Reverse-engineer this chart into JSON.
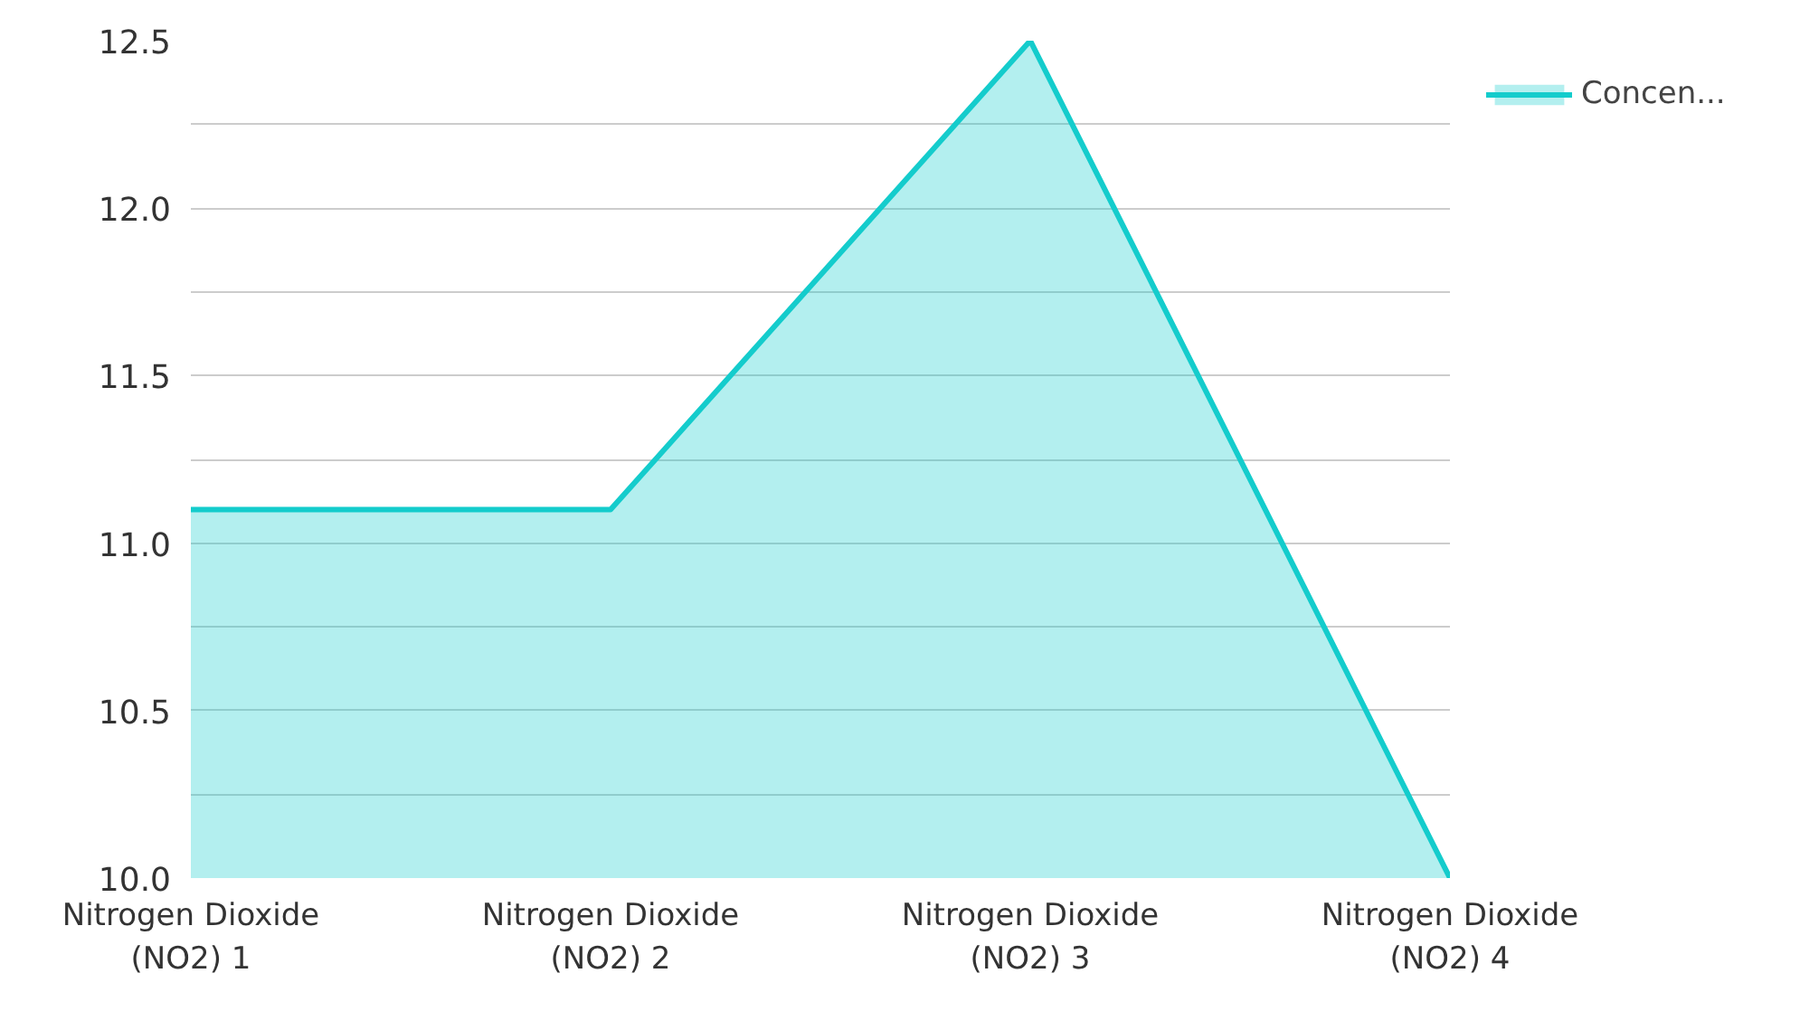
{
  "chart_data": {
    "type": "area",
    "categories": [
      "Nitrogen Dioxide (NO2) 1",
      "Nitrogen Dioxide (NO2) 2",
      "Nitrogen Dioxide (NO2) 3",
      "Nitrogen Dioxide (NO2) 4"
    ],
    "series": [
      {
        "name": "Concen...",
        "color": "#14cccc",
        "values": [
          11.1,
          11.1,
          12.5,
          10.0
        ]
      }
    ],
    "ylim": [
      10.0,
      12.5
    ],
    "yticks": [
      {
        "value": 10.0,
        "label": "10.0"
      },
      {
        "value": 10.25,
        "label": null
      },
      {
        "value": 10.5,
        "label": "10.5"
      },
      {
        "value": 10.75,
        "label": null
      },
      {
        "value": 11.0,
        "label": "11.0"
      },
      {
        "value": 11.25,
        "label": null
      },
      {
        "value": 11.5,
        "label": "11.5"
      },
      {
        "value": 11.75,
        "label": null
      },
      {
        "value": 12.0,
        "label": "12.0"
      },
      {
        "value": 12.25,
        "label": null
      },
      {
        "value": 12.5,
        "label": "12.5"
      }
    ],
    "grid": "y",
    "legend": "top right"
  }
}
